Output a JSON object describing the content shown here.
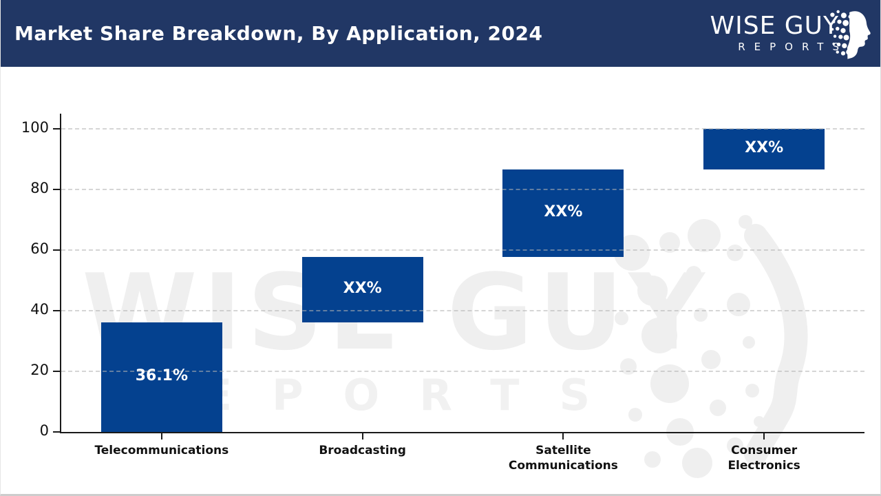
{
  "header": {
    "bg_color": "#213765",
    "logo": {
      "wordmark": "WISE GUY",
      "subtext": "REPORTS"
    }
  },
  "watermark": {
    "wordmark": "WISE GUY",
    "subtext": "REPORTS"
  },
  "chart_data": {
    "type": "bar",
    "subtype": "waterfall",
    "title": "Market Share Breakdown, By Application, 2024",
    "xlabel": "",
    "ylabel": "",
    "categories": [
      "Telecommunications",
      "Broadcasting",
      "Satellite Communications",
      "Consumer Electronics"
    ],
    "category_label_lines": [
      [
        "Telecommunications"
      ],
      [
        "Broadcasting"
      ],
      [
        "Satellite",
        "Communications"
      ],
      [
        "Consumer",
        "Electronics"
      ]
    ],
    "series": [
      {
        "name": "Market share (%)",
        "segments": [
          {
            "start": 0,
            "end": 36.1,
            "label": "36.1%"
          },
          {
            "start": 36.1,
            "end": 57.7,
            "label": "XX%"
          },
          {
            "start": 57.7,
            "end": 86.5,
            "label": "XX%"
          },
          {
            "start": 86.5,
            "end": 100,
            "label": "XX%"
          }
        ]
      }
    ],
    "ylim": [
      0,
      105
    ],
    "yticks": [
      0,
      20,
      40,
      60,
      80,
      100
    ],
    "grid": {
      "axis": "y",
      "style": "dashed"
    },
    "legend": "none",
    "bar_color": "#04418f",
    "bar_label_color": "#ffffff",
    "axis_color": "#1a1a1a",
    "tick_label_color": "#111111"
  }
}
